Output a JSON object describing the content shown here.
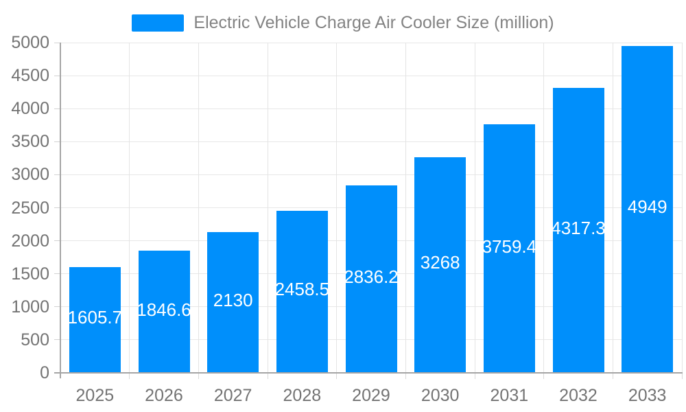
{
  "legend": {
    "label": "Electric Vehicle Charge Air Cooler Size (million)",
    "swatch_color": "#008FFB"
  },
  "chart_data": {
    "type": "bar",
    "title": "Electric Vehicle Charge Air Cooler Size (million)",
    "categories": [
      "2025",
      "2026",
      "2027",
      "2028",
      "2029",
      "2030",
      "2031",
      "2032",
      "2033"
    ],
    "series": [
      {
        "name": "Electric Vehicle Charge Air Cooler Size (million)",
        "values": [
          1605.7,
          1846.6,
          2130,
          2458.5,
          2836.2,
          3268,
          3759.4,
          4317.3,
          4949
        ]
      }
    ],
    "data_labels": [
      "1605.7",
      "1846.6",
      "2130",
      "2458.5",
      "2836.2",
      "3268",
      "3759.4",
      "4317.3",
      "4949"
    ],
    "xlabel": "",
    "ylabel": "",
    "ylim": [
      0,
      5000
    ],
    "ytick_step": 500,
    "yticks": [
      0,
      500,
      1000,
      1500,
      2000,
      2500,
      3000,
      3500,
      4000,
      4500,
      5000
    ],
    "ytick_labels": [
      "0",
      "500",
      "1000",
      "1500",
      "2000",
      "2500",
      "3000",
      "3500",
      "4000",
      "4500",
      "5000"
    ],
    "grid": true,
    "legend_position": "top",
    "colors": {
      "bar": "#008FFB",
      "data_label": "#ffffff",
      "axis_label": "#737373",
      "title": "#838383",
      "gridline": "#e7e7e7",
      "axis_line": "#a5a5a5"
    }
  }
}
